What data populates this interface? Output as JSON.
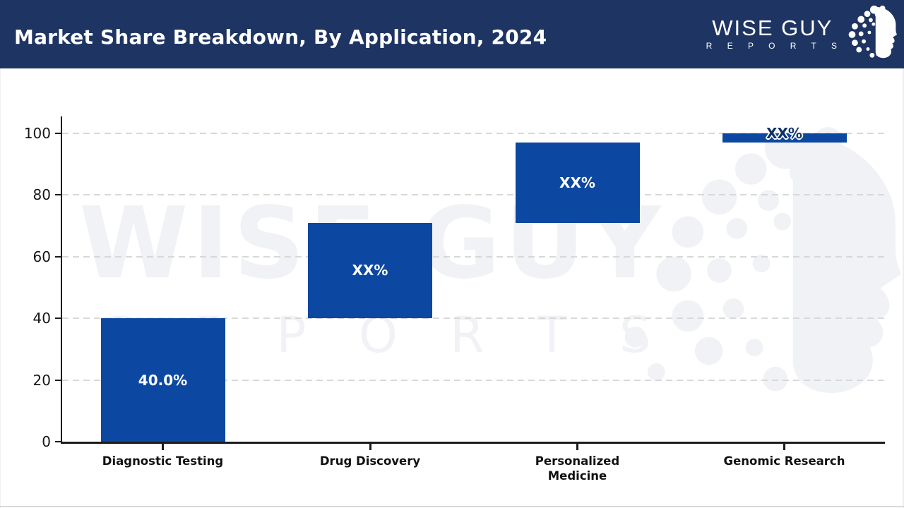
{
  "header": {
    "title": "Market Share Breakdown, By Application, 2024",
    "logo_line1": "WISE GUY",
    "logo_line2": "R E P O R T S"
  },
  "watermark": {
    "line1": "WISE GUY",
    "line2": "R E P O R T S"
  },
  "colors": {
    "header_bg": "#1e3462",
    "bar": "#0c47a1",
    "axis": "#1c1c1c",
    "grid": "#d8d8d8",
    "watermark": "#f1f2f5",
    "bar_label_on_bar": "#ffffff",
    "bar_label_outside": "#0d3168"
  },
  "chart_data": {
    "type": "bar",
    "subtype": "waterfall",
    "title": "Market Share Breakdown, By Application, 2024",
    "categories": [
      "Diagnostic Testing",
      "Drug Discovery",
      "Personalized Medicine",
      "Genomic Research"
    ],
    "tick_labels": [
      "Diagnostic Testing",
      "Drug Discovery",
      "Personalized\nMedicine",
      "Genomic Research"
    ],
    "segments": [
      {
        "category": "Diagnostic Testing",
        "start": 0,
        "end": 40,
        "label": "40.0%"
      },
      {
        "category": "Drug Discovery",
        "start": 40,
        "end": 71,
        "label": "XX%"
      },
      {
        "category": "Personalized Medicine",
        "start": 71,
        "end": 97,
        "label": "XX%"
      },
      {
        "category": "Genomic Research",
        "start": 97,
        "end": 100,
        "label": "XX%"
      }
    ],
    "xlabel": "",
    "ylabel": "",
    "ylim": [
      0,
      105
    ],
    "yticks": [
      0,
      20,
      40,
      60,
      80,
      100
    ],
    "grid": "horizontal-dashed",
    "legend": "none"
  }
}
